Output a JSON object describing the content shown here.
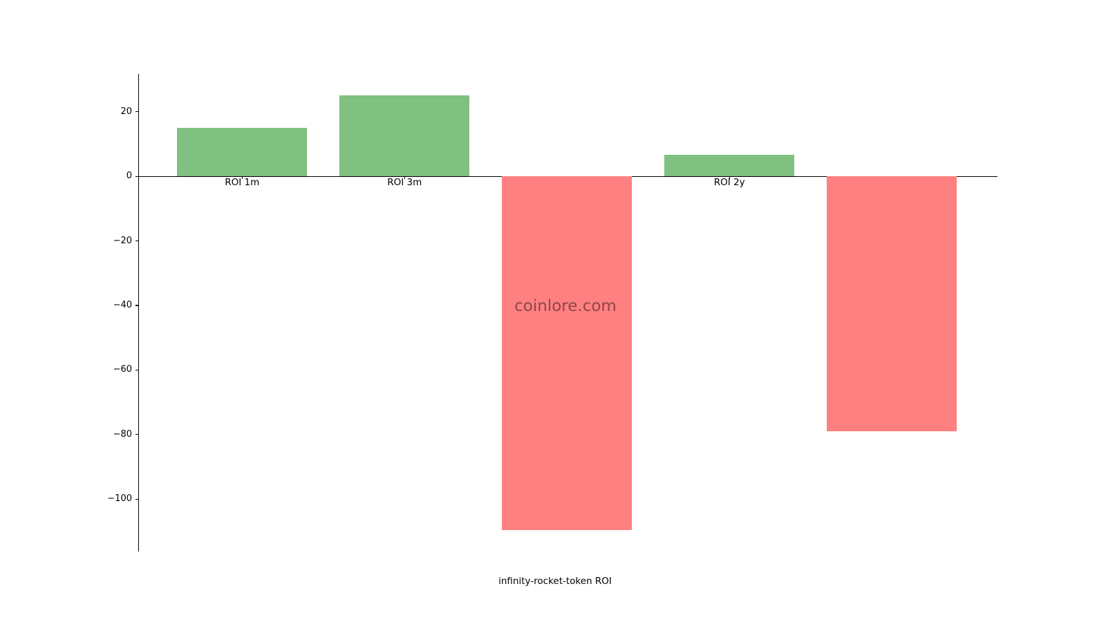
{
  "page": {
    "background": "#ffffff"
  },
  "chart_data": {
    "type": "bar",
    "title": "infinity-rocket-token ROI",
    "watermark": "coinlore.com",
    "categories": [
      "ROI 1m",
      "ROI 3m",
      "",
      "ROI 2y",
      ""
    ],
    "values": [
      15,
      25,
      -109.5,
      6.6,
      -79
    ],
    "bar_colors": [
      "#80c080",
      "#80c080",
      "#ff8080",
      "#80c080",
      "#ff8080"
    ],
    "positive_color": "#80c080",
    "negative_color": "#ff8080",
    "yticks": [
      {
        "value": 20,
        "label": "20"
      },
      {
        "value": 0,
        "label": "0"
      },
      {
        "value": -20,
        "label": "−20"
      },
      {
        "value": -40,
        "label": "−40"
      },
      {
        "value": -60,
        "label": "−60"
      },
      {
        "value": -80,
        "label": "−80"
      },
      {
        "value": -100,
        "label": "−100"
      }
    ],
    "ylim": [
      -116.2,
      31.7
    ],
    "xlim": [
      -0.635,
      4.65
    ],
    "bar_width": 0.8,
    "grid": false,
    "legend": "none",
    "axis_color": "#000000",
    "text_color": "#000000",
    "watermark_color": "rgba(0,0,0,0.45)"
  }
}
